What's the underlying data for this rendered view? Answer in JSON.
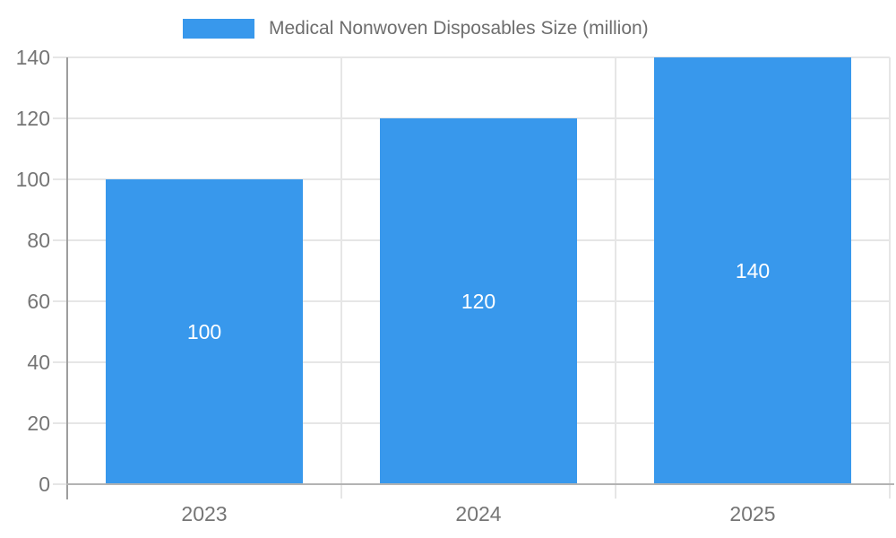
{
  "chart_data": {
    "type": "bar",
    "title": "Medical Nonwoven Disposables Size (million)",
    "categories": [
      "2023",
      "2024",
      "2025"
    ],
    "series": [
      {
        "name": "Medical Nonwoven Disposables Size (million)",
        "values": [
          100,
          120,
          140
        ],
        "bar_labels": [
          "100",
          "120",
          "140"
        ],
        "color": "#3898ec"
      }
    ],
    "xlabel": "",
    "ylabel": "",
    "ylim": [
      0,
      140
    ],
    "yticks": [
      0,
      20,
      40,
      60,
      80,
      100,
      120,
      140
    ],
    "ytick_labels": [
      "0",
      "20",
      "40",
      "60",
      "80",
      "100",
      "120",
      "140"
    ],
    "grid": "on",
    "legend_position": "top-center",
    "colors": {
      "bar": "#3898ec",
      "grid_line": "#e6e6e6",
      "y_axis_line": "#9e9e9e",
      "x_axis_line": "#b3b3b3",
      "axis_tick_label": "#757575",
      "legend_text": "#6e6e6e",
      "bar_value_label": "#ffffff",
      "background": "#ffffff"
    }
  }
}
